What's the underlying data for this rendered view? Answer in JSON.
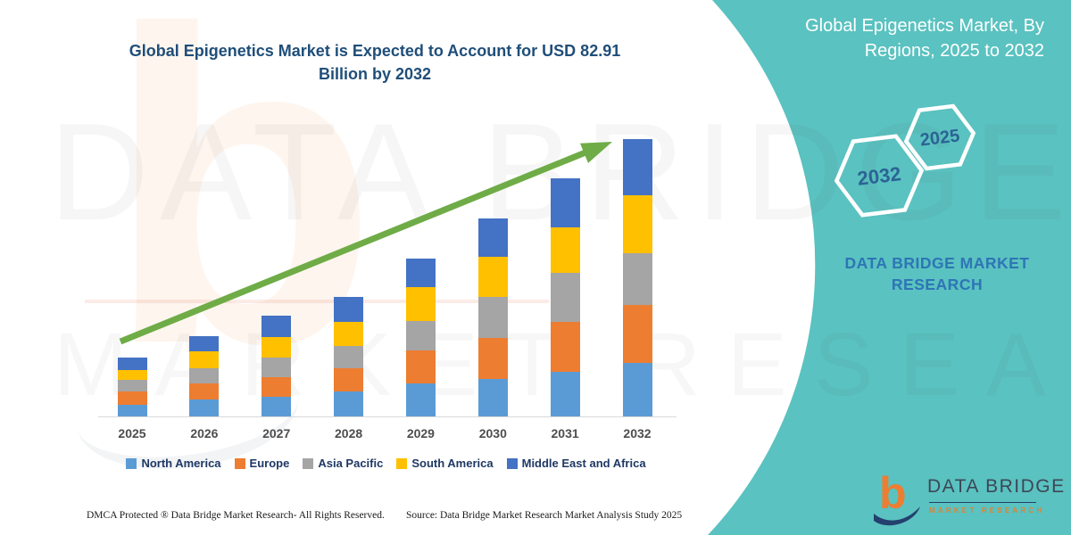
{
  "left_title": {
    "line1": "Global Epigenetics Market is Expected to Account for USD 82.91",
    "line2": "Billion by 2032"
  },
  "right_panel": {
    "title_line1": "Global Epigenetics Market, By",
    "title_line2": "Regions, 2025 to 2032",
    "hexagon_large_year": "2032",
    "hexagon_small_year": "2025",
    "brand_line1": "DATA BRIDGE MARKET",
    "brand_line2": "RESEARCH"
  },
  "footer": {
    "dmca": "DMCA Protected ® Data Bridge Market Research-  All Rights Reserved.",
    "source": "Source: Data Bridge Market Research  Market Analysis Study 2025"
  },
  "logo": {
    "monogram": "b",
    "name": "DATA BRIDGE",
    "subtitle": "MARKET RESEARCH"
  },
  "watermark": {
    "row1": "DATA BRIDGE",
    "row2": "MARKET RESEARCH"
  },
  "colors": {
    "teal_panel": "#5AC2C0",
    "title_navy": "#1F4E79",
    "brand_blue": "#2E75B6",
    "hexagon_text_blue": "#2B6395",
    "legend_text_navy": "#1F3864",
    "arrow_green": "#6FAC47",
    "logo_orange": "#ED7D31",
    "logo_navy": "#24406E",
    "axis_line_gray": "#D9D9D9"
  },
  "chart_data": {
    "type": "bar",
    "stacked": true,
    "title": "Global Epigenetics Market is Expected to Account for USD 82.91 Billion by 2032",
    "unit": "USD Billion",
    "categories": [
      "2025",
      "2026",
      "2027",
      "2028",
      "2029",
      "2030",
      "2031",
      "2032"
    ],
    "series": [
      {
        "name": "North America",
        "color": "#5B9BD5",
        "values": [
          3.6,
          5.0,
          6.0,
          7.5,
          9.8,
          11.1,
          13.3,
          16.0
        ]
      },
      {
        "name": "Europe",
        "color": "#ED7D31",
        "values": [
          3.8,
          4.9,
          5.7,
          6.8,
          9.8,
          12.4,
          14.9,
          17.3
        ]
      },
      {
        "name": "Asia Pacific",
        "color": "#A5A5A5",
        "values": [
          3.5,
          4.6,
          6.0,
          6.7,
          8.9,
          12.2,
          14.6,
          15.6
        ]
      },
      {
        "name": "South America",
        "color": "#FFC000",
        "values": [
          3.1,
          4.9,
          6.1,
          7.4,
          10.2,
          12.1,
          13.7,
          17.3
        ]
      },
      {
        "name": "Middle East and Africa",
        "color": "#4472C4",
        "values": [
          3.7,
          4.7,
          6.4,
          7.4,
          8.4,
          11.3,
          14.6,
          16.71
        ]
      }
    ],
    "totals_estimated": [
      17.7,
      24.1,
      30.2,
      35.8,
      47.1,
      59.1,
      71.1,
      82.91
    ],
    "final_value_label": "USD 82.91 Billion by 2032",
    "ylim": [
      0,
      85
    ],
    "gridlines": false,
    "legend_position": "bottom",
    "trend_arrow": true
  }
}
